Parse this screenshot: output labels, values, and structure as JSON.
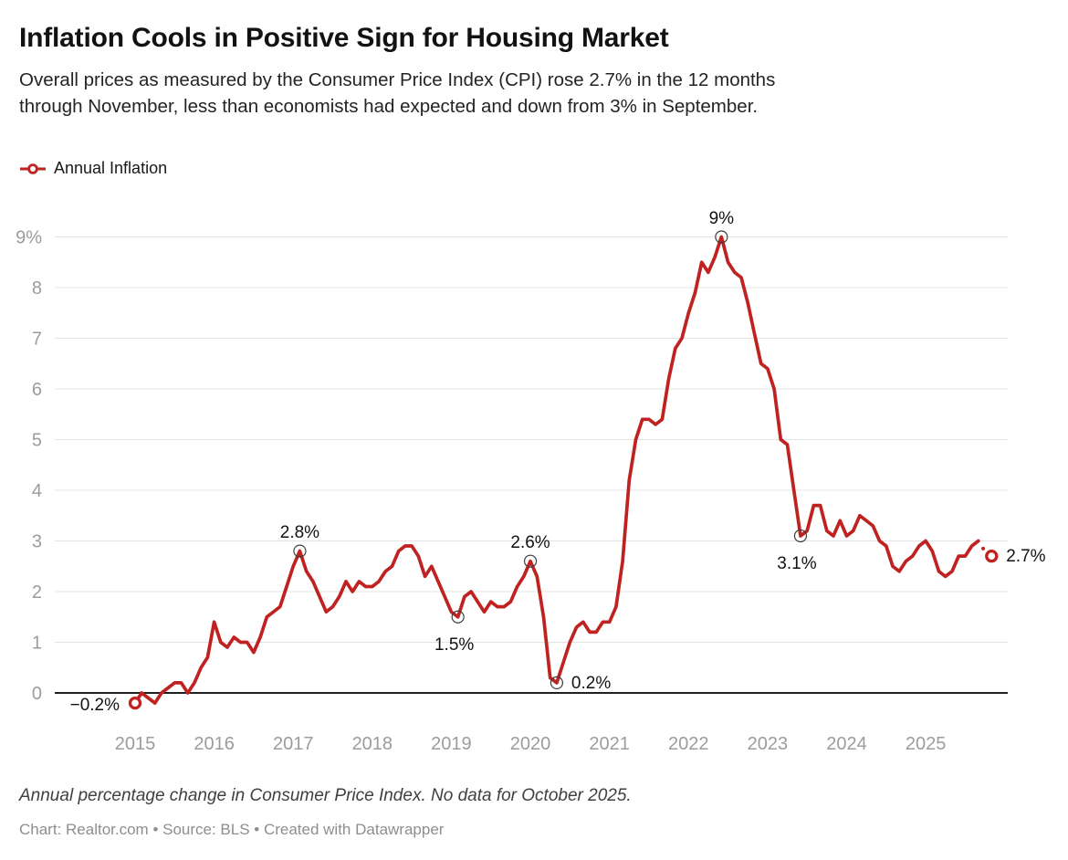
{
  "header": {
    "title": "Inflation Cools in Positive Sign for Housing Market",
    "subtitle_lines": [
      "Overall prices as measured by the Consumer Price Index (CPI) rose 2.7% in the 12 months",
      "through November, less than economists had expected and down from 3% in September."
    ]
  },
  "legend": {
    "label": "Annual Inflation"
  },
  "footer": {
    "note": "Annual percentage change in Consumer Price Index. No data for October 2025.",
    "byline": "Chart: Realtor.com • Source: BLS • Created with Datawrapper"
  },
  "colors": {
    "line": "#bf2221",
    "grid": "#e4e4e4",
    "zero_axis": "#000000",
    "axis_text": "#9c9c9c",
    "annotation_text": "#121212",
    "annotation_ring": "#3d3d3d",
    "background": "#ffffff"
  },
  "chart_data": {
    "type": "line",
    "title": "Inflation Cools in Positive Sign for Housing Market",
    "series_name": "Annual Inflation",
    "unit": "%",
    "frequency": "monthly",
    "start_month": "2015-01",
    "end_month": "2025-11",
    "note": "No data for October 2025",
    "ylim": [
      -0.5,
      9.5
    ],
    "grid": "horizontal",
    "legend_position": "top-left",
    "values": [
      -0.2,
      0.0,
      -0.1,
      -0.2,
      0.0,
      0.1,
      0.2,
      0.2,
      0.0,
      0.2,
      0.5,
      0.7,
      1.4,
      1.0,
      0.9,
      1.1,
      1.0,
      1.0,
      0.8,
      1.1,
      1.5,
      1.6,
      1.7,
      2.1,
      2.5,
      2.8,
      2.4,
      2.2,
      1.9,
      1.6,
      1.7,
      1.9,
      2.2,
      2.0,
      2.2,
      2.1,
      2.1,
      2.2,
      2.4,
      2.5,
      2.8,
      2.9,
      2.9,
      2.7,
      2.3,
      2.5,
      2.2,
      1.9,
      1.6,
      1.5,
      1.9,
      2.0,
      1.8,
      1.6,
      1.8,
      1.7,
      1.7,
      1.8,
      2.1,
      2.3,
      2.6,
      2.3,
      1.5,
      0.3,
      0.2,
      0.6,
      1.0,
      1.3,
      1.4,
      1.2,
      1.2,
      1.4,
      1.4,
      1.7,
      2.6,
      4.2,
      5.0,
      5.4,
      5.4,
      5.3,
      5.4,
      6.2,
      6.8,
      7.0,
      7.5,
      7.9,
      8.5,
      8.3,
      8.6,
      9.0,
      8.5,
      8.3,
      8.2,
      7.7,
      7.1,
      6.5,
      6.4,
      6.0,
      5.0,
      4.9,
      4.0,
      3.1,
      3.2,
      3.7,
      3.7,
      3.2,
      3.1,
      3.4,
      3.1,
      3.2,
      3.5,
      3.4,
      3.3,
      3.0,
      2.9,
      2.5,
      2.4,
      2.6,
      2.7,
      2.9,
      3.0,
      2.8,
      2.4,
      2.3,
      2.4,
      2.7,
      2.7,
      2.9,
      3.0,
      null,
      2.7
    ],
    "y_ticks": [
      {
        "value": 0,
        "label": "0"
      },
      {
        "value": 1,
        "label": "1"
      },
      {
        "value": 2,
        "label": "2"
      },
      {
        "value": 3,
        "label": "3"
      },
      {
        "value": 4,
        "label": "4"
      },
      {
        "value": 5,
        "label": "5"
      },
      {
        "value": 6,
        "label": "6"
      },
      {
        "value": 7,
        "label": "7"
      },
      {
        "value": 8,
        "label": "8"
      },
      {
        "value": 9,
        "label": "9%"
      }
    ],
    "x_ticks": [
      {
        "label": "2015",
        "month_index": 0
      },
      {
        "label": "2016",
        "month_index": 12
      },
      {
        "label": "2017",
        "month_index": 24
      },
      {
        "label": "2018",
        "month_index": 36
      },
      {
        "label": "2019",
        "month_index": 48
      },
      {
        "label": "2020",
        "month_index": 60
      },
      {
        "label": "2021",
        "month_index": 72
      },
      {
        "label": "2022",
        "month_index": 84
      },
      {
        "label": "2023",
        "month_index": 96
      },
      {
        "label": "2024",
        "month_index": 108
      },
      {
        "label": "2025",
        "month_index": 120
      }
    ],
    "annotations": [
      {
        "month_index": 0,
        "label": "−0.2%",
        "marker": "endpoint",
        "position": "left"
      },
      {
        "month_index": 25,
        "label": "2.8%",
        "marker": "ring",
        "position": "above"
      },
      {
        "month_index": 49,
        "label": "1.5%",
        "marker": "ring",
        "position": "below"
      },
      {
        "month_index": 60,
        "label": "2.6%",
        "marker": "ring",
        "position": "above"
      },
      {
        "month_index": 64,
        "label": "0.2%",
        "marker": "ring",
        "position": "right"
      },
      {
        "month_index": 89,
        "label": "9%",
        "marker": "ring",
        "position": "above"
      },
      {
        "month_index": 101,
        "label": "3.1%",
        "marker": "ring",
        "position": "below"
      },
      {
        "month_index": 130,
        "label": "2.7%",
        "marker": "endpoint",
        "position": "right"
      }
    ]
  }
}
